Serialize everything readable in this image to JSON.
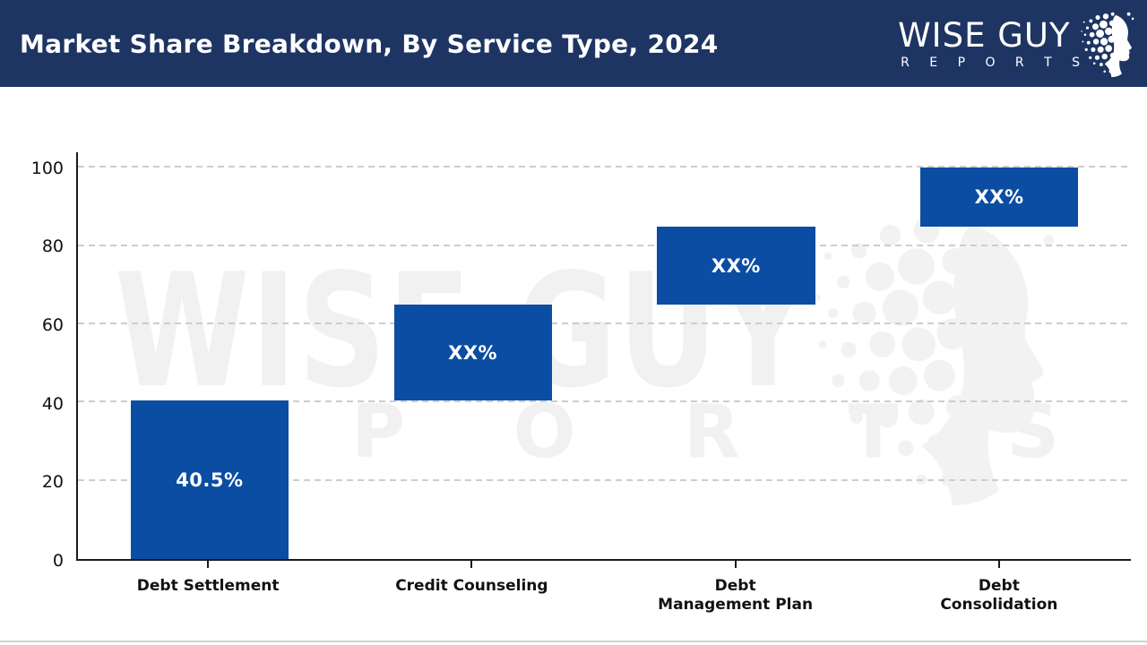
{
  "header": {
    "title": "Market Share Breakdown, By Service Type, 2024",
    "bg_color": "#1e3563",
    "logo": {
      "line1": "WISE GUY",
      "line2": "R E P O R T S"
    }
  },
  "watermark": {
    "line1": "WISE GUY",
    "line2": "P O R T S"
  },
  "chart_data": {
    "type": "bar",
    "variant": "waterfall",
    "title": "Market Share Breakdown, By Service Type, 2024",
    "categories": [
      "Debt Settlement",
      "Credit Counseling",
      "Debt Management Plan",
      "Debt Consolidation"
    ],
    "segments": [
      {
        "category": "Debt Settlement",
        "start": 0,
        "end": 40.5,
        "value": 40.5,
        "label": "40.5%"
      },
      {
        "category": "Credit Counseling",
        "start": 40.5,
        "end": 65,
        "value": 24.5,
        "label": "XX%"
      },
      {
        "category": "Debt Management Plan",
        "start": 65,
        "end": 85,
        "value": 20,
        "label": "XX%"
      },
      {
        "category": "Debt Consolidation",
        "start": 85,
        "end": 100,
        "value": 15,
        "label": "XX%"
      }
    ],
    "y_ticks": [
      0,
      20,
      40,
      60,
      80,
      100
    ],
    "ylim": [
      0,
      104
    ],
    "xlabel": "",
    "ylabel": "",
    "grid": "horizontal-dashed",
    "legend": "none",
    "bar_color": "#0b4da2",
    "bar_label_color": "#ffffff",
    "axis_color": "#1a1a1a",
    "gridline_color": "#cdcdcd"
  }
}
